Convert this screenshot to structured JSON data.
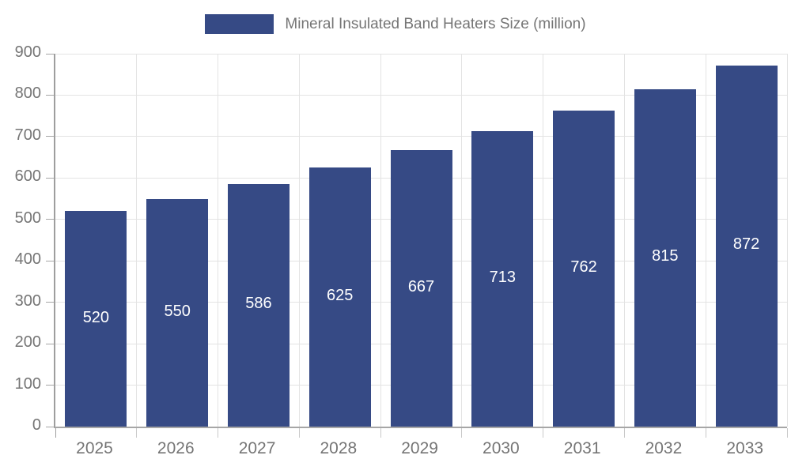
{
  "colors": {
    "bar": "#364a85",
    "axis": "#9e9e9e",
    "grid": "#e3e3e3",
    "tick_text": "#757575",
    "bar_label_text": "#ffffff"
  },
  "chart_data": {
    "type": "bar",
    "title": "",
    "legend_label": "Mineral Insulated Band Heaters Size (million)",
    "legend_position": "top",
    "categories": [
      "2025",
      "2026",
      "2027",
      "2028",
      "2029",
      "2030",
      "2031",
      "2032",
      "2033"
    ],
    "series": [
      {
        "name": "Mineral Insulated Band Heaters Size (million)",
        "values": [
          520,
          550,
          586,
          625,
          667,
          713,
          762,
          815,
          872
        ]
      }
    ],
    "bar_labels": [
      520,
      550,
      586,
      625,
      667,
      713,
      762,
      815,
      872
    ],
    "xlabel": "",
    "ylabel": "",
    "ylim": [
      0,
      900
    ],
    "yticks": [
      0,
      100,
      200,
      300,
      400,
      500,
      600,
      700,
      800,
      900
    ],
    "grid": true
  }
}
